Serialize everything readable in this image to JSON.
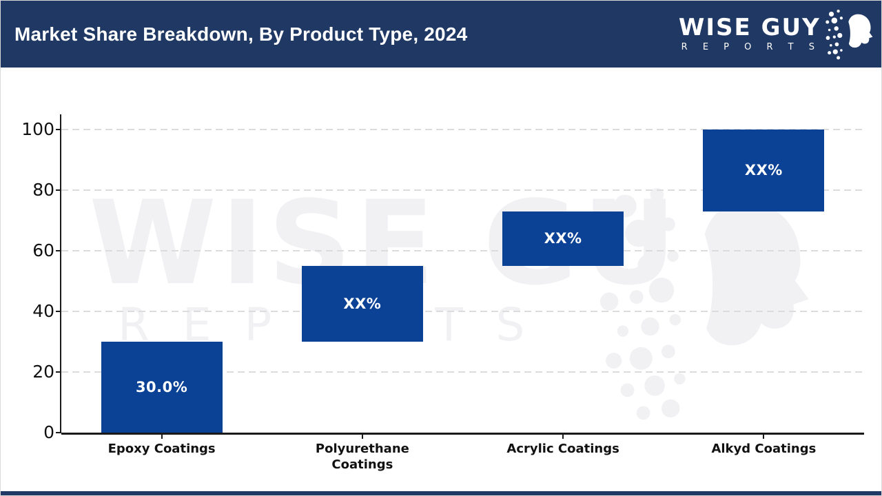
{
  "header": {
    "title": "Market Share Breakdown, By Product Type, 2024",
    "logo": {
      "line1": "WISE GUY",
      "line2": "R E P O R T S"
    }
  },
  "watermark": {
    "line1": "WISE GU",
    "line2": "REPORTS"
  },
  "colors": {
    "header_bg": "#1f3864",
    "footer_bg": "#1f3864",
    "bar_fill": "#0b4296",
    "bar_label": "#ffffff",
    "gridline": "#dcdcdc",
    "axis": "#1a1a1a",
    "watermark": "#f1f1f4",
    "title_text": "#ffffff"
  },
  "chart_data": {
    "type": "bar",
    "variant": "floating-waterfall",
    "title": "Market Share Breakdown, By Product Type, 2024",
    "categories": [
      "Epoxy Coatings",
      "Polyurethane Coatings",
      "Acrylic Coatings",
      "Alkyd Coatings"
    ],
    "segments": [
      {
        "category": "Epoxy Coatings",
        "start": 0,
        "end": 30,
        "label": "30.0%"
      },
      {
        "category": "Polyurethane Coatings",
        "start": 30,
        "end": 55,
        "label": "XX%"
      },
      {
        "category": "Acrylic Coatings",
        "start": 55,
        "end": 73,
        "label": "XX%"
      },
      {
        "category": "Alkyd Coatings",
        "start": 73,
        "end": 100,
        "label": "XX%"
      }
    ],
    "xlabel": "",
    "ylabel": "",
    "ylim": [
      0,
      100
    ],
    "yticks": [
      0,
      20,
      40,
      60,
      80,
      100
    ],
    "grid": "horizontal-dashed",
    "legend": "none",
    "bar_color": "#0b4296",
    "bar_label_color": "#ffffff"
  }
}
